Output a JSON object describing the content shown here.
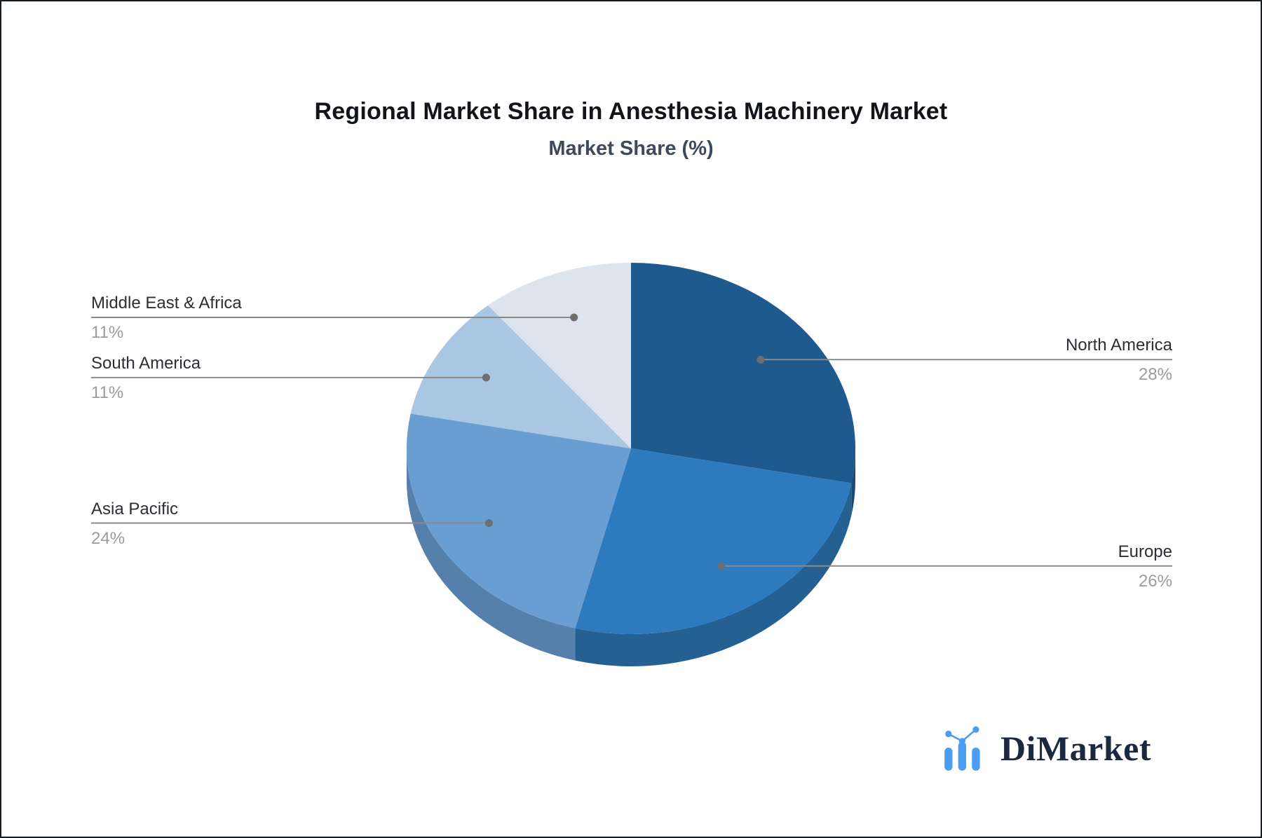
{
  "chart_data": {
    "type": "pie",
    "style": "3d-pie",
    "title": "Regional Market Share in Anesthesia Machinery Market",
    "subtitle": "Market Share (%)",
    "unit": "%",
    "start_angle": "12-o-clock",
    "direction": "clockwise",
    "legend_position": "callout-labels",
    "slices": [
      {
        "label": "North America",
        "value": 28,
        "pct_label": "28%",
        "color": "#1F5A8E",
        "rim_color": "#1A4A73",
        "side": "right"
      },
      {
        "label": "Europe",
        "value": 26,
        "pct_label": "26%",
        "color": "#2D7ABF",
        "rim_color": "#246092",
        "side": "right"
      },
      {
        "label": "Asia Pacific",
        "value": 24,
        "pct_label": "24%",
        "color": "#689ED1",
        "rim_color": "#5480AB",
        "side": "left"
      },
      {
        "label": "South America",
        "value": 11,
        "pct_label": "11%",
        "color": "#A9C6E2",
        "rim_color": "#8AA7C4",
        "side": "left"
      },
      {
        "label": "Middle East & Africa",
        "value": 11,
        "pct_label": "11%",
        "color": "#DDE4EE",
        "rim_color": "#B9C2CF",
        "side": "left"
      }
    ],
    "callout_line_color": "#8a8a8a",
    "callout_dot_color": "#6e6e6e"
  },
  "branding": {
    "logo_text": "DiMarket",
    "logo_icon": "bar-chart-sparkline-icon",
    "logo_icon_color": "#4A9DF0",
    "logo_text_color": "#1B2940"
  }
}
